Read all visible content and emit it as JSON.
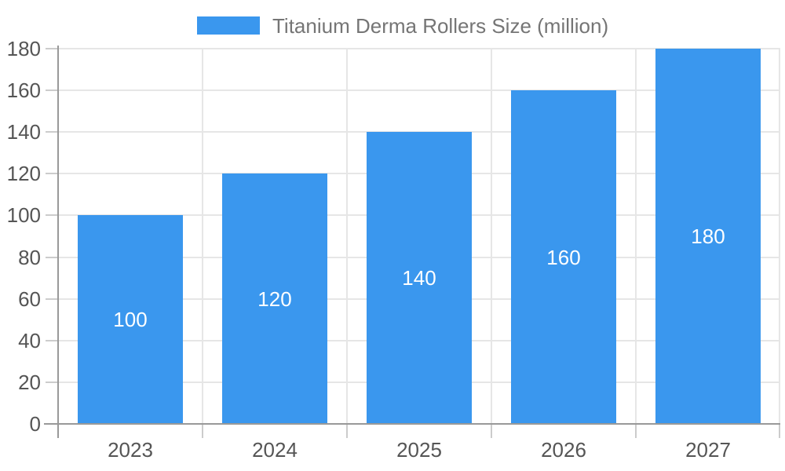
{
  "legend": {
    "label": "Titanium Derma Rollers Size (million)"
  },
  "chart_data": {
    "type": "bar",
    "title": "",
    "categories": [
      "2023",
      "2024",
      "2025",
      "2026",
      "2027"
    ],
    "series": [
      {
        "name": "Titanium Derma Rollers Size (million)",
        "values": [
          100,
          120,
          140,
          160,
          180
        ],
        "color": "#3a97ee"
      }
    ],
    "bar_value_labels": [
      "100",
      "120",
      "140",
      "160",
      "180"
    ],
    "xlabel": "",
    "ylabel": "",
    "ylim": [
      0,
      180
    ],
    "ytick_step": 20,
    "yticks": [
      0,
      20,
      40,
      60,
      80,
      100,
      120,
      140,
      160,
      180
    ],
    "grid": "on",
    "legend_position": "top",
    "colors": {
      "bar": "#3a97ee",
      "grid": "#e6e6e6",
      "axis": "#999999",
      "tick": "#cccccc",
      "axis_text": "#555555",
      "legend_text": "#757575",
      "bar_label_text": "#ffffff",
      "background": "#ffffff"
    }
  }
}
